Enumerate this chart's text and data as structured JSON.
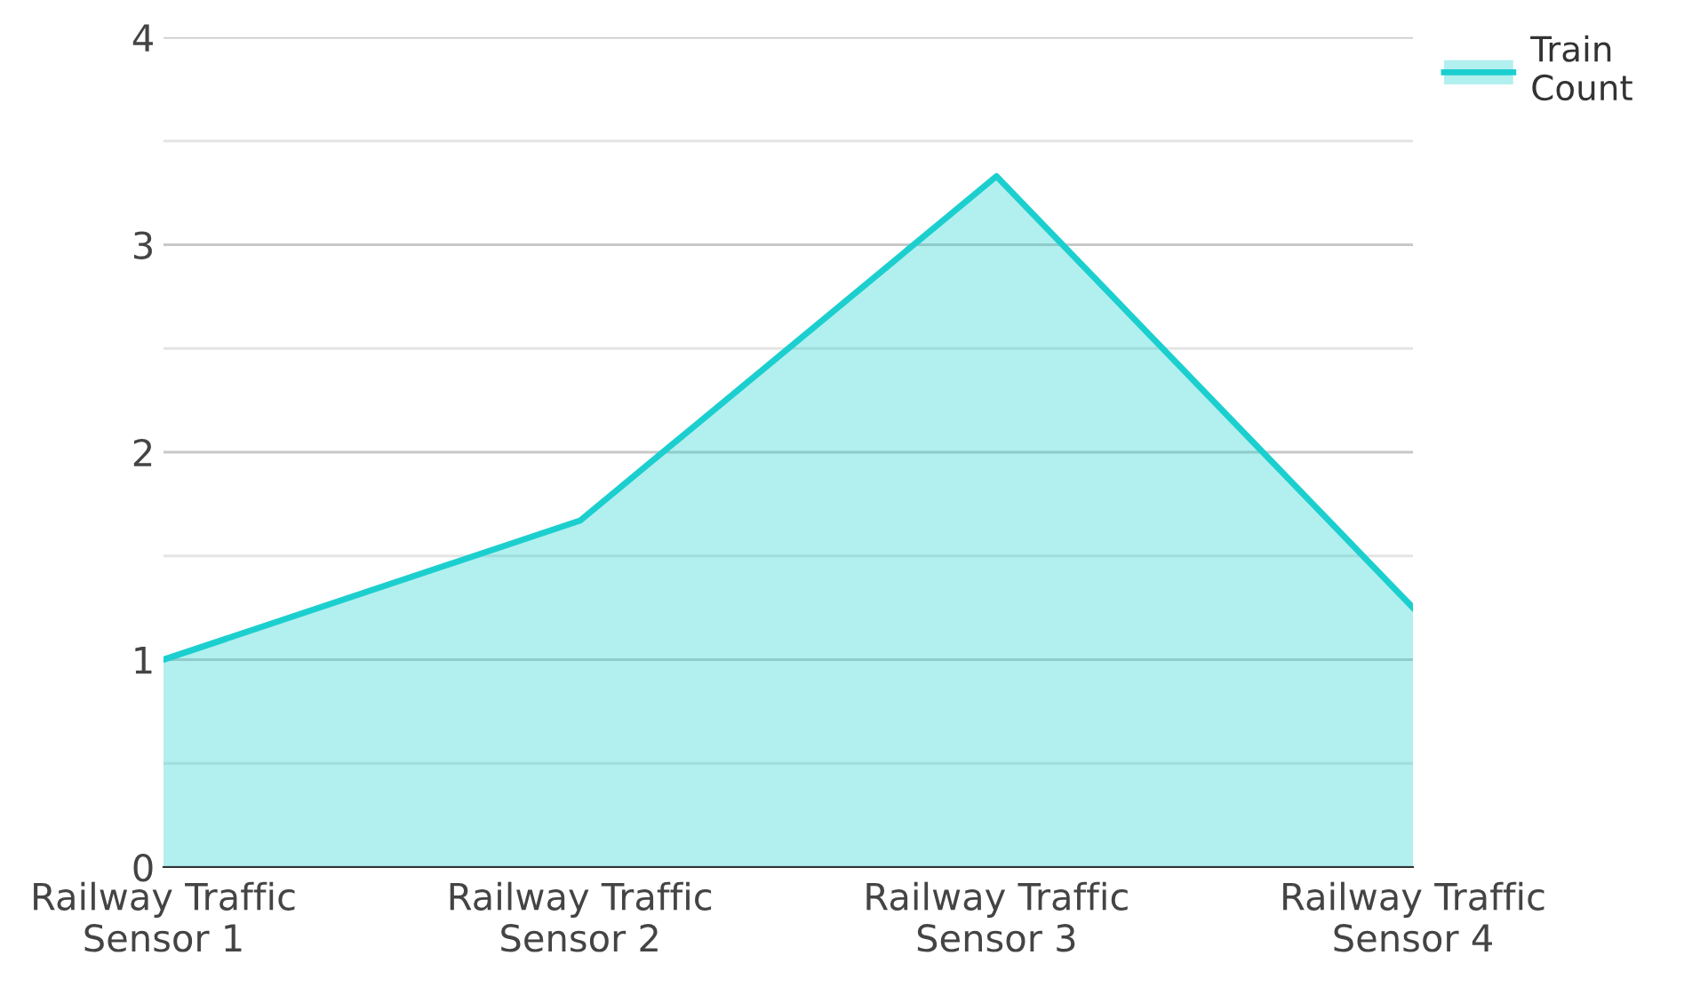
{
  "chart_data": {
    "type": "area",
    "categories": [
      "Railway Traffic Sensor 1",
      "Railway Traffic Sensor 2",
      "Railway Traffic Sensor 3",
      "Railway Traffic Sensor 4"
    ],
    "series": [
      {
        "name": "Train Count",
        "color": "#1ccfcf",
        "values": [
          1.0,
          1.67,
          3.33,
          1.25
        ]
      }
    ],
    "ylim": [
      0,
      4
    ],
    "yticks": [
      0,
      {
        "value": 0.5,
        "label": null
      },
      1,
      {
        "value": 1.5,
        "label": null
      },
      2,
      {
        "value": 2.5,
        "label": null
      },
      3,
      {
        "value": 3.5,
        "label": null
      },
      4
    ],
    "grid": "y",
    "legend": "top right"
  }
}
